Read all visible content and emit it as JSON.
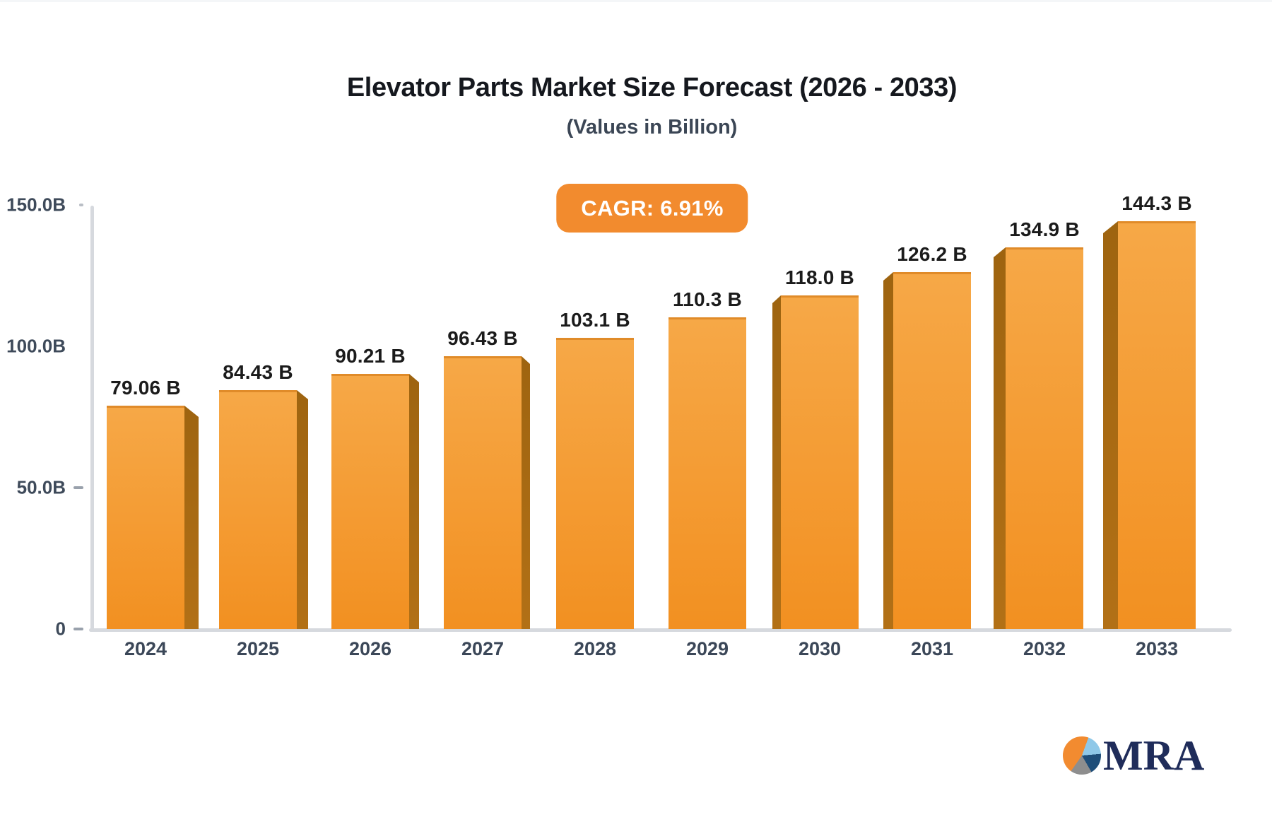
{
  "header": {
    "title": "Elevator Parts Market Size Forecast (2026 - 2033)",
    "subtitle": "(Values in Billion)"
  },
  "badge": {
    "label": "CAGR: 6.91%",
    "bg_color": "#F28B2E",
    "text_color": "#FFFFFF"
  },
  "chart_data": {
    "type": "bar",
    "title": "Elevator Parts Market Size Forecast (2026 - 2033)",
    "subtitle": "(Values in Billion)",
    "categories": [
      "2024",
      "2025",
      "2026",
      "2027",
      "2028",
      "2029",
      "2030",
      "2031",
      "2032",
      "2033"
    ],
    "values": [
      79.06,
      84.43,
      90.21,
      96.43,
      103.1,
      110.3,
      118.0,
      126.2,
      134.9,
      144.3
    ],
    "value_labels": [
      "79.06 B",
      "84.43 B",
      "90.21 B",
      "96.43 B",
      "103.1 B",
      "110.3 B",
      "118.0 B",
      "126.2 B",
      "134.9 B",
      "144.3 B"
    ],
    "unit": "Billion",
    "cagr_label": "CAGR: 6.91%",
    "ylim": [
      0,
      150
    ],
    "yticks": [
      {
        "label": "150.0B",
        "value": 150
      },
      {
        "label": "100.0B",
        "value": 100
      },
      {
        "label": "50.0B",
        "value": 50
      },
      {
        "label": "0",
        "value": 0
      }
    ],
    "grid": false,
    "legend": false,
    "bar_color_top": "#F6A847",
    "bar_color_bottom": "#F29021",
    "bar_top_edge_color": "#E08B29",
    "bar_side_color_top": "#9E6410",
    "bar_side_color_bottom": "#B27016"
  },
  "logo": {
    "text": "MRA",
    "icon": "pie-chart-icon",
    "text_color": "#1F2C5A",
    "pie_colors": {
      "orange": "#F28B30",
      "light_blue": "#8FC8E8",
      "navy": "#1F4E79",
      "gray": "#8E8E8E"
    }
  }
}
